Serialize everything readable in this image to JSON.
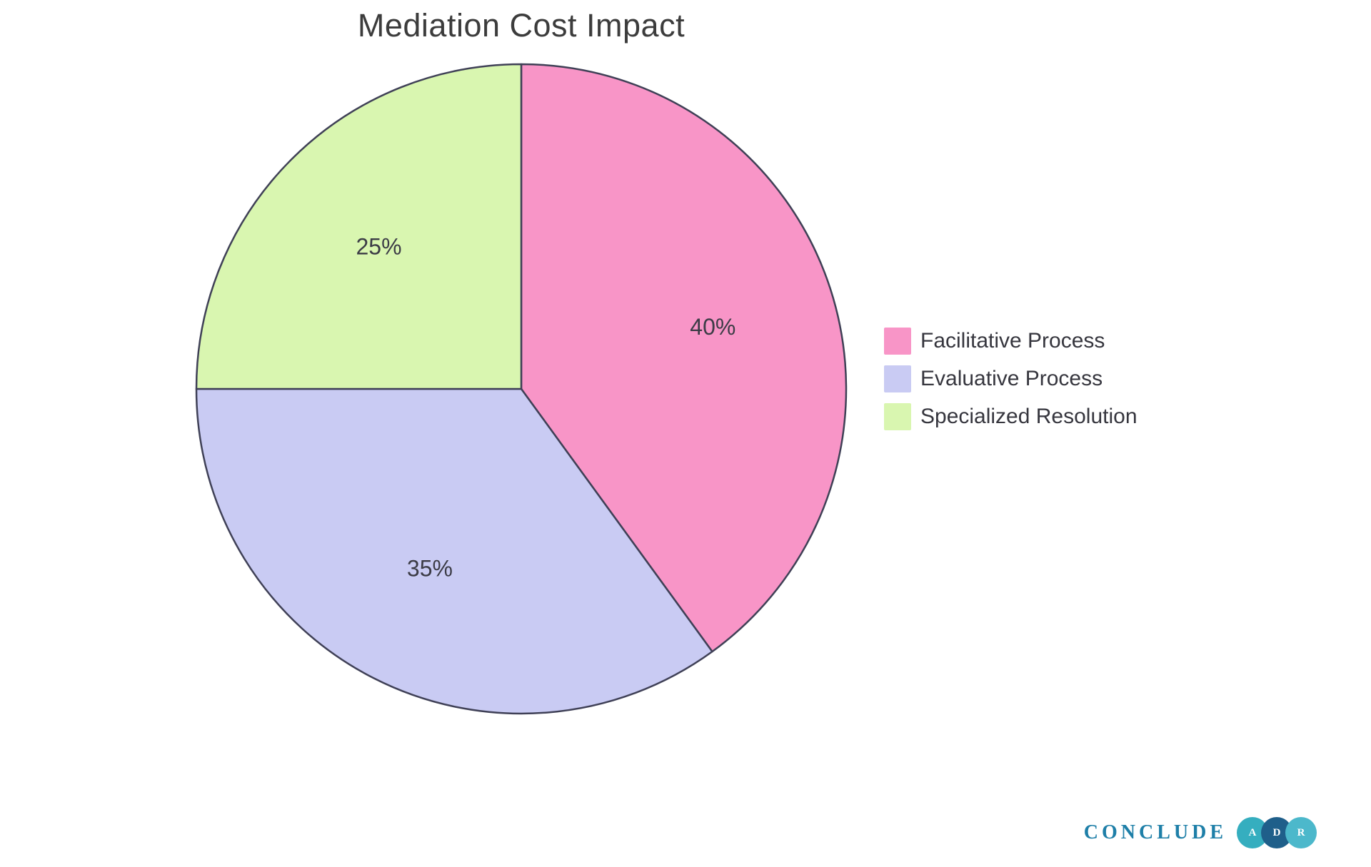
{
  "chart_data": {
    "type": "pie",
    "title": "Mediation Cost Impact",
    "categories": [
      "Facilitative Process",
      "Evaluative Process",
      "Specialized Resolution"
    ],
    "values": [
      40,
      35,
      25
    ],
    "labels": [
      "40%",
      "35%",
      "25%"
    ],
    "colors": [
      "#F895C7",
      "#C9CBF3",
      "#D9F6B0"
    ],
    "stroke_color": "#3F4056",
    "label_color": "#3C3C46",
    "start_angle_deg": 0,
    "direction": "clockwise",
    "legend_position": "right"
  },
  "branding": {
    "wordmark": "CONCLUDE",
    "wordmark_color": "#1E7FA8",
    "badges": [
      {
        "letter": "A",
        "color": "#35AEBF"
      },
      {
        "letter": "D",
        "color": "#1F5F8A"
      },
      {
        "letter": "R",
        "color": "#4CB8CB"
      }
    ]
  }
}
